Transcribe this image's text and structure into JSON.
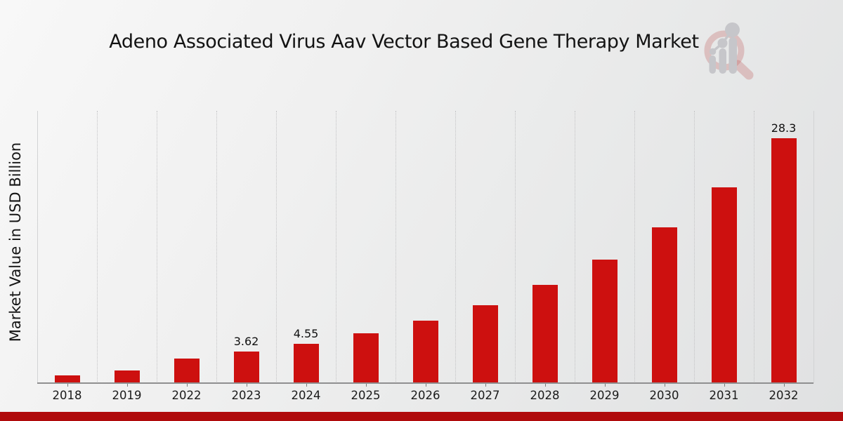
{
  "header": {
    "title": "Adeno Associated Virus Aav Vector Based Gene Therapy Market"
  },
  "branding": {
    "logo_icon": "magnifier-bar-chart-watermark",
    "ring_color": "#c16060",
    "glyph_color": "#c6c6ca"
  },
  "chart_data": {
    "type": "bar",
    "title": "Adeno Associated Virus Aav Vector Based Gene Therapy Market",
    "xlabel": "",
    "ylabel": "Market Value in USD Billion",
    "categories": [
      "2018",
      "2019",
      "2022",
      "2023",
      "2024",
      "2025",
      "2026",
      "2027",
      "2028",
      "2029",
      "2030",
      "2031",
      "2032"
    ],
    "values": [
      0.89,
      1.45,
      2.86,
      3.62,
      4.55,
      5.72,
      7.19,
      9.04,
      11.36,
      14.3,
      18.0,
      22.6,
      28.3
    ],
    "data_labels": {
      "2023": "3.62",
      "2024": "4.55",
      "2032": "28.3"
    },
    "bar_color": "#cd100f",
    "grid": "vertical-dotted",
    "legend": "none"
  },
  "footer": {
    "accent_band_color": "#b00b0c"
  }
}
